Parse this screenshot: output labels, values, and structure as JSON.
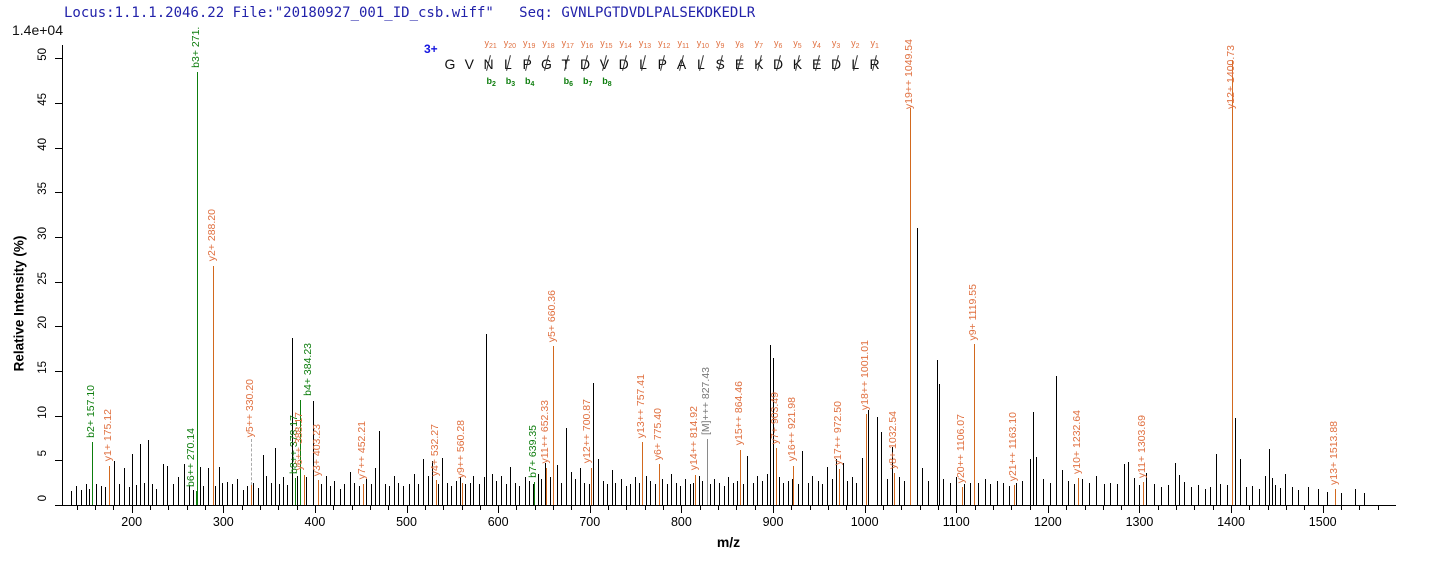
{
  "header": {
    "locus_file": "Locus:1.1.1.2046.22 File:\"20180927_001_ID_csb.wiff\"",
    "separator": "   ",
    "seq": "Seq: GVNLPGTDVDLPALSEKDKEDLR"
  },
  "scale_note": "1.4e+04",
  "colors": {
    "header_text": "#2222aa",
    "b_ion": "#0d7d0d",
    "y_ion": "#e07040",
    "y_ion_line": "#d2691e",
    "precursor": "#8a8a8a",
    "peak": "#000000"
  },
  "sequence_annotation": {
    "charge": "3+",
    "residues": [
      "G",
      "V",
      "N",
      "L",
      "P",
      "G",
      "T",
      "D",
      "V",
      "D",
      "L",
      "P",
      "A",
      "L",
      "S",
      "E",
      "K",
      "D",
      "K",
      "E",
      "D",
      "L",
      "R"
    ],
    "y_ions": [
      {
        "after": 2,
        "n": "21"
      },
      {
        "after": 3,
        "n": "20"
      },
      {
        "after": 4,
        "n": "19"
      },
      {
        "after": 5,
        "n": "18"
      },
      {
        "after": 6,
        "n": "17"
      },
      {
        "after": 7,
        "n": "16"
      },
      {
        "after": 8,
        "n": "15"
      },
      {
        "after": 9,
        "n": "14"
      },
      {
        "after": 10,
        "n": "13"
      },
      {
        "after": 11,
        "n": "12"
      },
      {
        "after": 12,
        "n": "11"
      },
      {
        "after": 13,
        "n": "10"
      },
      {
        "after": 14,
        "n": "9"
      },
      {
        "after": 15,
        "n": "8"
      },
      {
        "after": 16,
        "n": "7"
      },
      {
        "after": 17,
        "n": "6"
      },
      {
        "after": 18,
        "n": "5"
      },
      {
        "after": 19,
        "n": "4"
      },
      {
        "after": 20,
        "n": "3"
      },
      {
        "after": 21,
        "n": "2"
      },
      {
        "after": 22,
        "n": "1"
      }
    ],
    "b_ions": [
      {
        "after": 2,
        "n": "2"
      },
      {
        "after": 3,
        "n": "3"
      },
      {
        "after": 4,
        "n": "4"
      },
      {
        "after": 6,
        "n": "6"
      },
      {
        "after": 7,
        "n": "7"
      },
      {
        "after": 8,
        "n": "8"
      }
    ]
  },
  "chart_data": {
    "type": "bar",
    "variant": "ms2-peptide-fragment-spectrum",
    "title": "Locus:1.1.1.2046.22 File:\"20180927_001_ID_csb.wiff\" Seq: GVNLPGTDVDLPALSEKDKEDLR",
    "xlabel": "m/z",
    "ylabel": "Relative  Intensity (%)",
    "absolute_intensity_max": "1.4e+04",
    "x_range": [
      125,
      1580
    ],
    "y_range": [
      0,
      51.5
    ],
    "x_ticks": [
      200,
      300,
      400,
      500,
      600,
      700,
      800,
      900,
      1000,
      1100,
      1200,
      1300,
      1400,
      1500
    ],
    "x_minor_step": 20,
    "y_ticks": [
      0,
      5,
      10,
      15,
      20,
      25,
      30,
      35,
      40,
      45,
      50
    ],
    "grid": false,
    "legend": false,
    "labeled_peaks": [
      {
        "label": "b2+ 157.10",
        "mz": 157.1,
        "pct": 7.1,
        "series": "b"
      },
      {
        "label": "y1+ 175.12",
        "mz": 175.12,
        "pct": 4.4,
        "series": "y"
      },
      {
        "label": "b6++ 270.14",
        "mz": 270.14,
        "pct": 1.6,
        "series": "b",
        "dx": -4
      },
      {
        "label": "b3+ 271.14",
        "mz": 271.14,
        "pct": 48.5,
        "series": "b",
        "high_label": true
      },
      {
        "label": "y2+ 288.20",
        "mz": 288.2,
        "pct": 26.8,
        "series": "y"
      },
      {
        "label": "y5++ 330.20",
        "mz": 330.2,
        "pct": 2.2,
        "series": "y",
        "leader": 46
      },
      {
        "label": "b8++ 378.17",
        "mz": 378.17,
        "pct": 3.0,
        "series": "b"
      },
      {
        "label": "y6++ 388.17",
        "mz": 388.17,
        "pct": 3.4,
        "series": "y",
        "dx": -4
      },
      {
        "label": "b4+ 384.23",
        "mz": 384.23,
        "pct": 11.8,
        "series": "b",
        "dx": 9
      },
      {
        "label": "y3+ 403.23",
        "mz": 403.23,
        "pct": 2.8,
        "series": "y"
      },
      {
        "label": "y7++ 452.21",
        "mz": 452.21,
        "pct": 2.4,
        "series": "y"
      },
      {
        "label": "y4+ 532.27",
        "mz": 532.27,
        "pct": 2.8,
        "series": "y"
      },
      {
        "label": "y9++ 560.28",
        "mz": 560.28,
        "pct": 2.5,
        "series": "y"
      },
      {
        "label": "b7+ 639.35",
        "mz": 639.35,
        "pct": 2.6,
        "series": "b"
      },
      {
        "label": "y11++ 652.33",
        "mz": 652.33,
        "pct": 4.2,
        "series": "y"
      },
      {
        "label": "y5+ 660.36",
        "mz": 660.36,
        "pct": 17.8,
        "series": "y"
      },
      {
        "label": "y12++ 700.87",
        "mz": 700.87,
        "pct": 4.2,
        "series": "y",
        "dx": -3
      },
      {
        "label": "y13++ 757.41",
        "mz": 757.41,
        "pct": 7.0,
        "series": "y"
      },
      {
        "label": "y6+ 775.40",
        "mz": 775.4,
        "pct": 4.6,
        "series": "y"
      },
      {
        "label": "y14++ 814.92",
        "mz": 814.92,
        "pct": 3.4,
        "series": "y"
      },
      {
        "label": "[M]+++ 827.43",
        "mz": 827.43,
        "pct": 7.4,
        "series": "M"
      },
      {
        "label": "y15++ 864.46",
        "mz": 864.46,
        "pct": 6.2,
        "series": "y"
      },
      {
        "label": "y7+ 903.49",
        "mz": 903.49,
        "pct": 6.4,
        "series": "y"
      },
      {
        "label": "y16++ 921.98",
        "mz": 921.98,
        "pct": 4.4,
        "series": "y"
      },
      {
        "label": "y17++ 972.50",
        "mz": 972.5,
        "pct": 4.0,
        "series": "y"
      },
      {
        "label": "y18++ 1001.01",
        "mz": 1001.01,
        "pct": 10.2,
        "series": "y"
      },
      {
        "label": "y8+ 1032.54",
        "mz": 1032.54,
        "pct": 3.6,
        "series": "y"
      },
      {
        "label": "y19++ 1049.54",
        "mz": 1049.54,
        "pct": 44.5,
        "series": "y"
      },
      {
        "label": "y20++ 1106.07",
        "mz": 1106.07,
        "pct": 2.0,
        "series": "y"
      },
      {
        "label": "y9+ 1119.55",
        "mz": 1119.55,
        "pct": 18.0,
        "series": "y"
      },
      {
        "label": "y21++ 1163.10",
        "mz": 1163.1,
        "pct": 2.2,
        "series": "y"
      },
      {
        "label": "y10+ 1232.64",
        "mz": 1232.64,
        "pct": 3.0,
        "series": "y"
      },
      {
        "label": "y11+ 1303.69",
        "mz": 1303.69,
        "pct": 2.6,
        "series": "y"
      },
      {
        "label": "y12+ 1400.73",
        "mz": 1400.73,
        "pct": 49.8,
        "series": "y"
      },
      {
        "label": "y13+ 1513.88",
        "mz": 1513.88,
        "pct": 1.8,
        "series": "y"
      }
    ],
    "background_peaks": [
      [
        134,
        1.6
      ],
      [
        139,
        2.1
      ],
      [
        145,
        1.7
      ],
      [
        150,
        2.3
      ],
      [
        153,
        1.8
      ],
      [
        161,
        2.4
      ],
      [
        166,
        2.1
      ],
      [
        171,
        2.0
      ],
      [
        181,
        4.9
      ],
      [
        186,
        2.3
      ],
      [
        192,
        4.1
      ],
      [
        197,
        2.0
      ],
      [
        200,
        5.7
      ],
      [
        205,
        2.2
      ],
      [
        209,
        6.8
      ],
      [
        213,
        2.5
      ],
      [
        218,
        7.3
      ],
      [
        222,
        2.3
      ],
      [
        227,
        1.8
      ],
      [
        234,
        4.6
      ],
      [
        239,
        4.4
      ],
      [
        245,
        2.3
      ],
      [
        251,
        3.1
      ],
      [
        257,
        4.6
      ],
      [
        262,
        2.2
      ],
      [
        267,
        1.7
      ],
      [
        274,
        4.3
      ],
      [
        278,
        2.1
      ],
      [
        283,
        4.2
      ],
      [
        291,
        2.1
      ],
      [
        295,
        4.3
      ],
      [
        299,
        2.5
      ],
      [
        304,
        2.6
      ],
      [
        309,
        2.3
      ],
      [
        315,
        2.9
      ],
      [
        321,
        1.7
      ],
      [
        326,
        2.1
      ],
      [
        332,
        2.5
      ],
      [
        338,
        1.9
      ],
      [
        343,
        5.6
      ],
      [
        347,
        3.3
      ],
      [
        352,
        2.5
      ],
      [
        356,
        6.4
      ],
      [
        361,
        2.3
      ],
      [
        365,
        3.1
      ],
      [
        369,
        2.2
      ],
      [
        375,
        18.7
      ],
      [
        380,
        3.3
      ],
      [
        390,
        3.1
      ],
      [
        398,
        11.7
      ],
      [
        403,
        2.0
      ],
      [
        407,
        2.3
      ],
      [
        412,
        3.3
      ],
      [
        416,
        2.1
      ],
      [
        421,
        2.7
      ],
      [
        427,
        1.8
      ],
      [
        432,
        2.3
      ],
      [
        438,
        3.7
      ],
      [
        443,
        2.5
      ],
      [
        448,
        2.1
      ],
      [
        456,
        2.9
      ],
      [
        461,
        2.4
      ],
      [
        466,
        4.1
      ],
      [
        470,
        8.3
      ],
      [
        476,
        2.3
      ],
      [
        481,
        2.1
      ],
      [
        486,
        3.3
      ],
      [
        491,
        2.5
      ],
      [
        496,
        2.1
      ],
      [
        503,
        2.4
      ],
      [
        508,
        3.5
      ],
      [
        513,
        2.3
      ],
      [
        518,
        5.1
      ],
      [
        523,
        3.3
      ],
      [
        528,
        4.9
      ],
      [
        534,
        2.3
      ],
      [
        539,
        5.3
      ],
      [
        544,
        2.5
      ],
      [
        549,
        2.1
      ],
      [
        554,
        2.7
      ],
      [
        558,
        3.1
      ],
      [
        564,
        2.3
      ],
      [
        569,
        2.5
      ],
      [
        573,
        3.3
      ],
      [
        579,
        2.3
      ],
      [
        584,
        3.1
      ],
      [
        587,
        19.1
      ],
      [
        593,
        3.5
      ],
      [
        598,
        2.7
      ],
      [
        603,
        3.3
      ],
      [
        608,
        2.4
      ],
      [
        613,
        4.3
      ],
      [
        618,
        2.5
      ],
      [
        623,
        2.1
      ],
      [
        629,
        3.1
      ],
      [
        634,
        2.7
      ],
      [
        638,
        2.3
      ],
      [
        643,
        3.5
      ],
      [
        647,
        2.9
      ],
      [
        651,
        4.7
      ],
      [
        657,
        3.1
      ],
      [
        664,
        4.5
      ],
      [
        669,
        2.5
      ],
      [
        674,
        8.6
      ],
      [
        679,
        3.7
      ],
      [
        684,
        2.9
      ],
      [
        689,
        4.1
      ],
      [
        694,
        2.5
      ],
      [
        699,
        2.3
      ],
      [
        703,
        13.7
      ],
      [
        709,
        5.2
      ],
      [
        714,
        2.7
      ],
      [
        719,
        2.3
      ],
      [
        724,
        3.9
      ],
      [
        728,
        2.5
      ],
      [
        734,
        2.9
      ],
      [
        739,
        2.1
      ],
      [
        744,
        2.3
      ],
      [
        749,
        3.1
      ],
      [
        754,
        2.5
      ],
      [
        761,
        3.3
      ],
      [
        766,
        2.7
      ],
      [
        771,
        2.3
      ],
      [
        779,
        2.9
      ],
      [
        784,
        2.3
      ],
      [
        789,
        3.5
      ],
      [
        794,
        2.5
      ],
      [
        799,
        2.1
      ],
      [
        804,
        2.9
      ],
      [
        809,
        2.4
      ],
      [
        813,
        2.5
      ],
      [
        819,
        3.3
      ],
      [
        823,
        2.7
      ],
      [
        831,
        2.3
      ],
      [
        836,
        2.9
      ],
      [
        841,
        2.5
      ],
      [
        846,
        2.1
      ],
      [
        851,
        3.1
      ],
      [
        856,
        2.5
      ],
      [
        861,
        2.7
      ],
      [
        867,
        2.3
      ],
      [
        872,
        5.5
      ],
      [
        878,
        2.5
      ],
      [
        883,
        3.3
      ],
      [
        888,
        2.7
      ],
      [
        893,
        3.5
      ],
      [
        897,
        17.9
      ],
      [
        900,
        16.5
      ],
      [
        907,
        3.1
      ],
      [
        911,
        2.5
      ],
      [
        916,
        2.7
      ],
      [
        921,
        2.9
      ],
      [
        927,
        2.3
      ],
      [
        932,
        6.0
      ],
      [
        938,
        2.5
      ],
      [
        943,
        3.3
      ],
      [
        949,
        2.7
      ],
      [
        954,
        2.3
      ],
      [
        959,
        4.3
      ],
      [
        964,
        2.9
      ],
      [
        969,
        5.1
      ],
      [
        976,
        4.7
      ],
      [
        981,
        2.7
      ],
      [
        986,
        3.1
      ],
      [
        991,
        2.5
      ],
      [
        997,
        5.3
      ],
      [
        1004,
        10.6
      ],
      [
        1013,
        9.8
      ],
      [
        1018,
        8.2
      ],
      [
        1024,
        2.9
      ],
      [
        1030,
        6.5
      ],
      [
        1037,
        3.1
      ],
      [
        1043,
        2.7
      ],
      [
        1049,
        3.3
      ],
      [
        1057,
        31.0
      ],
      [
        1063,
        4.1
      ],
      [
        1069,
        2.7
      ],
      [
        1079,
        16.2
      ],
      [
        1081,
        13.5
      ],
      [
        1086,
        2.9
      ],
      [
        1093,
        2.5
      ],
      [
        1100,
        3.1
      ],
      [
        1108,
        2.3
      ],
      [
        1115,
        2.5
      ],
      [
        1124,
        2.5
      ],
      [
        1131,
        2.9
      ],
      [
        1137,
        2.3
      ],
      [
        1144,
        2.7
      ],
      [
        1151,
        2.5
      ],
      [
        1158,
        2.1
      ],
      [
        1165,
        2.5
      ],
      [
        1172,
        2.7
      ],
      [
        1180,
        5.2
      ],
      [
        1184,
        10.4
      ],
      [
        1187,
        5.4
      ],
      [
        1195,
        2.9
      ],
      [
        1202,
        2.5
      ],
      [
        1209,
        14.4
      ],
      [
        1215,
        3.9
      ],
      [
        1222,
        2.7
      ],
      [
        1229,
        2.3
      ],
      [
        1237,
        2.9
      ],
      [
        1245,
        2.5
      ],
      [
        1253,
        3.2
      ],
      [
        1261,
        2.3
      ],
      [
        1268,
        2.5
      ],
      [
        1275,
        2.4
      ],
      [
        1283,
        4.6
      ],
      [
        1288,
        4.8
      ],
      [
        1294,
        3.0
      ],
      [
        1300,
        2.2
      ],
      [
        1307,
        3.6
      ],
      [
        1316,
        2.4
      ],
      [
        1324,
        2.0
      ],
      [
        1331,
        2.2
      ],
      [
        1339,
        4.7
      ],
      [
        1343,
        3.4
      ],
      [
        1349,
        2.6
      ],
      [
        1356,
        2.0
      ],
      [
        1364,
        2.2
      ],
      [
        1371,
        1.8
      ],
      [
        1377,
        2.0
      ],
      [
        1383,
        5.7
      ],
      [
        1388,
        2.4
      ],
      [
        1395,
        2.2
      ],
      [
        1401,
        11.2
      ],
      [
        1404,
        9.7
      ],
      [
        1410,
        5.1
      ],
      [
        1416,
        2.0
      ],
      [
        1423,
        2.1
      ],
      [
        1430,
        1.8
      ],
      [
        1437,
        3.2
      ],
      [
        1441,
        6.3
      ],
      [
        1445,
        3.0
      ],
      [
        1448,
        2.2
      ],
      [
        1453,
        1.9
      ],
      [
        1459,
        3.5
      ],
      [
        1466,
        2.0
      ],
      [
        1473,
        1.7
      ],
      [
        1484,
        2.0
      ],
      [
        1495,
        1.8
      ],
      [
        1505,
        1.5
      ],
      [
        1520,
        1.4
      ],
      [
        1535,
        1.8
      ],
      [
        1545,
        1.3
      ]
    ]
  }
}
